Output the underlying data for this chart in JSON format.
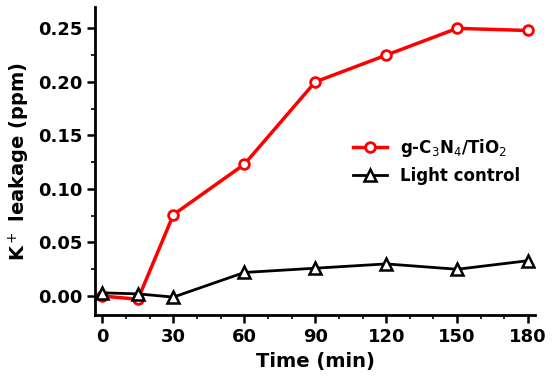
{
  "title": "",
  "xlabel": "Time (min)",
  "ylabel": "K$^+$ leakage (ppm)",
  "xlim": [
    -3,
    183
  ],
  "ylim": [
    -0.018,
    0.27
  ],
  "xticks": [
    0,
    30,
    60,
    90,
    120,
    150,
    180
  ],
  "yticks": [
    0.0,
    0.05,
    0.1,
    0.15,
    0.2,
    0.25
  ],
  "series": [
    {
      "label": "g-C$_3$N$_4$/TiO$_2$",
      "x": [
        0,
        15,
        30,
        60,
        90,
        120,
        150,
        180
      ],
      "y": [
        0.0,
        -0.003,
        0.076,
        0.123,
        0.2,
        0.225,
        0.25,
        0.248
      ],
      "color": "#ff0000",
      "linewidth": 2.5,
      "marker": "o",
      "markersize": 7,
      "markerfacecolor": "#ffffff",
      "markeredgecolor": "#ff0000",
      "markeredgewidth": 2.0
    },
    {
      "label": "Light control",
      "x": [
        0,
        15,
        30,
        60,
        90,
        120,
        150,
        180
      ],
      "y": [
        0.003,
        0.002,
        -0.001,
        0.022,
        0.026,
        0.03,
        0.025,
        0.033
      ],
      "color": "#000000",
      "linewidth": 2.0,
      "marker": "^",
      "markersize": 8,
      "markerfacecolor": "#ffffff",
      "markeredgecolor": "#000000",
      "markeredgewidth": 1.8
    }
  ],
  "legend_loc": "center right",
  "legend_fontsize": 12,
  "axis_fontsize": 14,
  "tick_fontsize": 13,
  "background_color": "#ffffff"
}
